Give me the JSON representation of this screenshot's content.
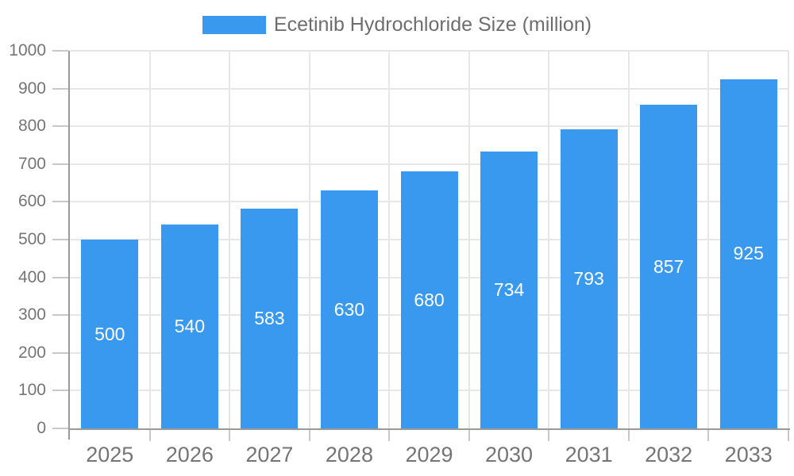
{
  "chart_data": {
    "type": "bar",
    "title": "",
    "legend": "Ecetinib Hydrochloride Size (million)",
    "legend_position": "top-center",
    "categories": [
      "2025",
      "2026",
      "2027",
      "2028",
      "2029",
      "2030",
      "2031",
      "2032",
      "2033"
    ],
    "values": [
      500,
      540,
      583,
      630,
      680,
      734,
      793,
      857,
      925
    ],
    "xlabel": "",
    "ylabel": "",
    "ylim": [
      0,
      1000
    ],
    "ytick_step": 100,
    "yticks": [
      0,
      100,
      200,
      300,
      400,
      500,
      600,
      700,
      800,
      900,
      1000
    ],
    "grid": true,
    "bar_value_labels_visible": true
  },
  "colors": {
    "background": "#FFFFFF",
    "bar": "#3999EE",
    "bar_value_label": "#FFFFFF",
    "legend_text": "#6E6E6E",
    "axis_label": "#757575",
    "axis_line": "#9A9A9A",
    "tick": "#C9C9C9",
    "gridline": "#E7E7E7"
  }
}
